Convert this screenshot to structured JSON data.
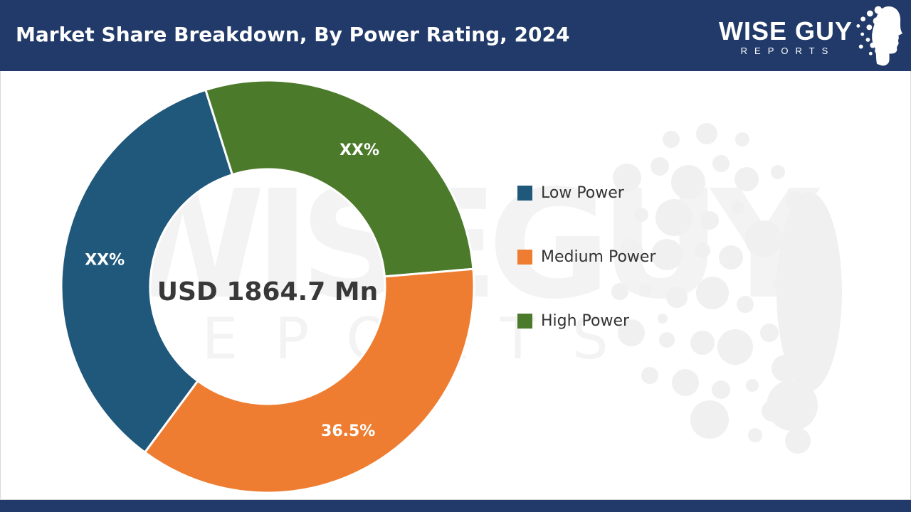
{
  "header": {
    "title": "Market Share Breakdown, By Power Rating, 2024",
    "logo": {
      "text": "WISE GUY",
      "subtext": "REPORTS",
      "icon": "dotted-face-profile-icon"
    }
  },
  "watermark": {
    "line1": "WISEGUY",
    "line2": "REPORTS"
  },
  "chart_data": {
    "type": "pie",
    "subtype": "donut",
    "title": "Market Share Breakdown, By Power Rating, 2024",
    "center_label": "USD 1864.7 Mn",
    "total_value": "USD 1864.7 Mn",
    "start_angle_deg_clockwise_from_top": -17.5,
    "slices": [
      {
        "name": "High Power",
        "display_label": "XX%",
        "value_pct": 28.5,
        "color": "#4C7A2B"
      },
      {
        "name": "Medium Power",
        "display_label": "36.5%",
        "value_pct": 36.5,
        "color": "#EE7D31"
      },
      {
        "name": "Low Power",
        "display_label": "XX%",
        "value_pct": 35.0,
        "color": "#20587C"
      }
    ],
    "legend": {
      "position": "right",
      "items": [
        {
          "label": "Low Power",
          "color": "#20587C"
        },
        {
          "label": "Medium Power",
          "color": "#EE7D31"
        },
        {
          "label": "High Power",
          "color": "#4C7A2B"
        }
      ]
    }
  },
  "colors": {
    "header_bar": "#213A69",
    "footer_bar": "#213A69",
    "background": "#FFFFFF",
    "center_text": "#383838",
    "legend_text": "#333333",
    "slice_label_text": "#FFFFFF",
    "watermark": "#F3F3F3",
    "border": "#D8D8D8"
  }
}
